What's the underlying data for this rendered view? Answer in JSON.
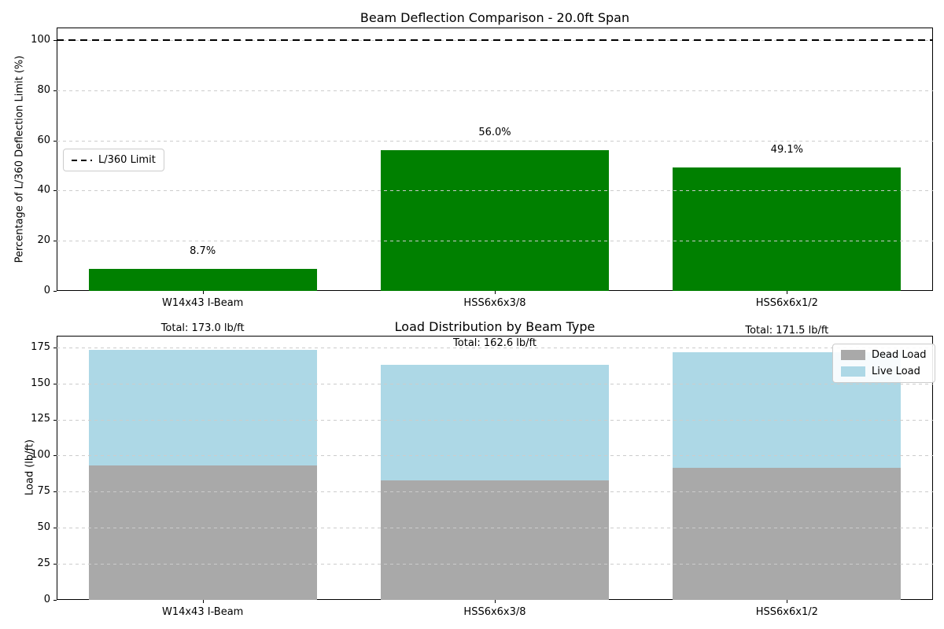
{
  "chart_data": [
    {
      "type": "bar",
      "title": "Beam Deflection Comparison - 20.0ft Span",
      "xlabel": "",
      "ylabel": "Percentage of L/360 Deflection Limit (%)",
      "categories": [
        "W14x43 I-Beam",
        "HSS6x6x3/8",
        "HSS6x6x1/2"
      ],
      "values": [
        8.7,
        56.0,
        49.1
      ],
      "bar_labels": [
        "8.7%",
        "56.0%",
        "49.1%"
      ],
      "bar_color": "#008000",
      "yticks": [
        0,
        20,
        40,
        60,
        80,
        100
      ],
      "ylim": [
        0,
        105
      ],
      "grid": "horizontal-dashed",
      "reference_line": {
        "value": 100,
        "style": "dashed",
        "color": "#000000"
      },
      "legend": {
        "position": "center-left",
        "entries": [
          {
            "label": "L/360 Limit",
            "marker": "dashed-line",
            "color": "#000000"
          }
        ]
      }
    },
    {
      "type": "stacked-bar",
      "title": "Load Distribution by Beam Type",
      "xlabel": "",
      "ylabel": "Load (lb/ft)",
      "categories": [
        "W14x43 I-Beam",
        "HSS6x6x3/8",
        "HSS6x6x1/2"
      ],
      "series": [
        {
          "name": "Dead Load",
          "color": "#a9a9a9",
          "values": [
            93.0,
            82.6,
            91.5
          ]
        },
        {
          "name": "Live Load",
          "color": "#add8e6",
          "values": [
            80.0,
            80.0,
            80.0
          ]
        }
      ],
      "totals": [
        173.0,
        162.6,
        171.5
      ],
      "total_labels": [
        "Total: 173.0 lb/ft",
        "Total: 162.6 lb/ft",
        "Total: 171.5 lb/ft"
      ],
      "yticks": [
        0,
        25,
        50,
        75,
        100,
        125,
        150,
        175
      ],
      "ylim": [
        0,
        183
      ],
      "grid": "horizontal-dashed",
      "legend": {
        "position": "upper-right",
        "entries": [
          {
            "label": "Dead Load",
            "marker": "swatch",
            "color": "#a9a9a9"
          },
          {
            "label": "Live Load",
            "marker": "swatch",
            "color": "#add8e6"
          }
        ]
      }
    }
  ]
}
